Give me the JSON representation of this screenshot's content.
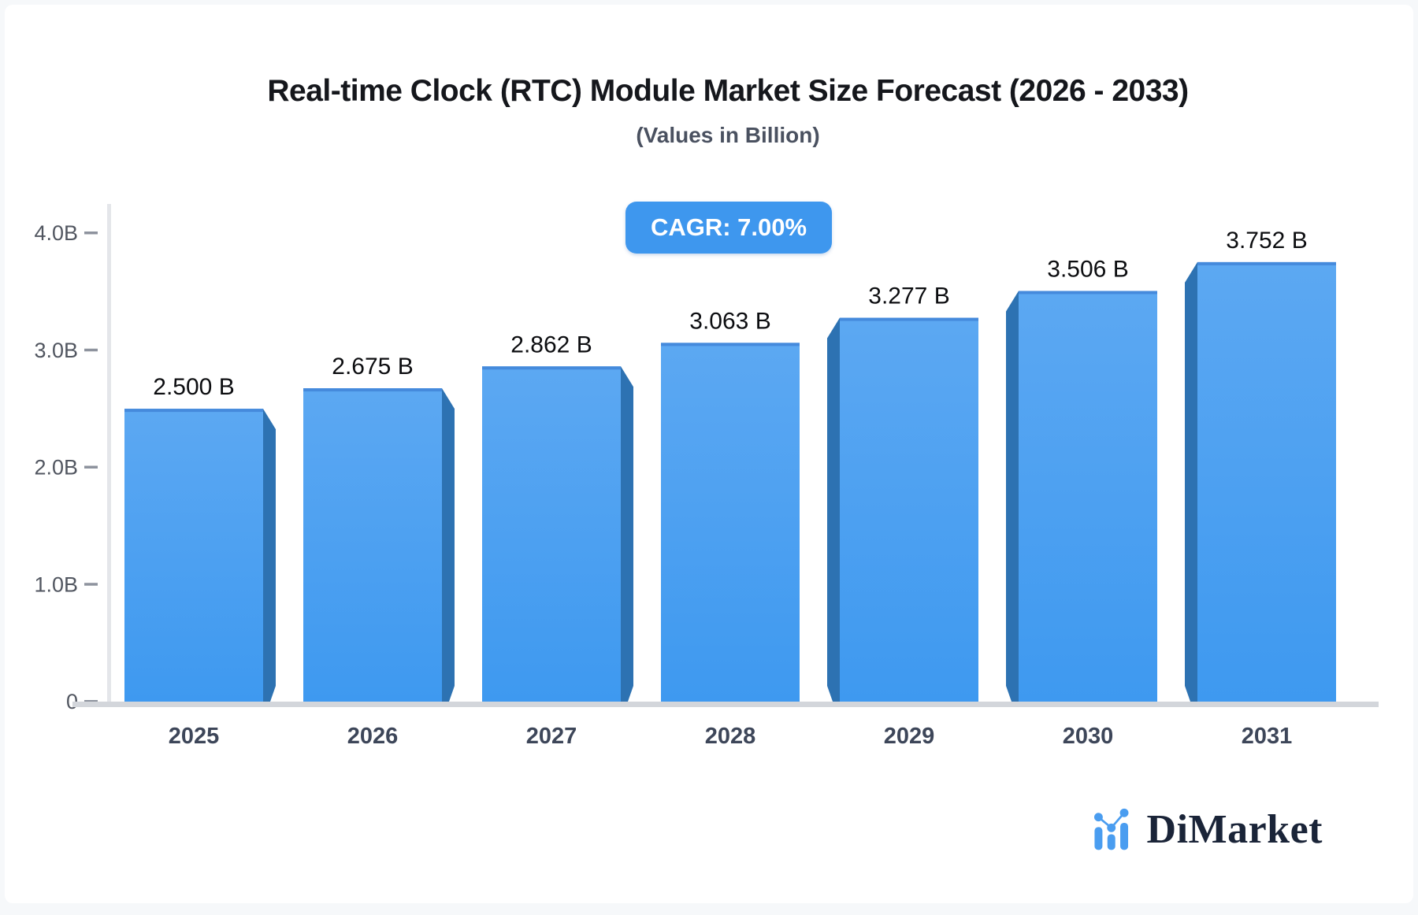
{
  "header": {
    "title": "Real-time Clock (RTC) Module Market Size Forecast (2026 - 2033)",
    "subtitle": "(Values in Billion)"
  },
  "badge": {
    "label": "CAGR: 7.00%",
    "bg_color": "#3E97EE",
    "text_color": "#FFFFFF"
  },
  "chart_data": {
    "type": "bar",
    "title": "Real-time Clock (RTC) Module Market Size Forecast (2026 - 2033)",
    "subtitle": "(Values in Billion)",
    "categories": [
      "2025",
      "2026",
      "2027",
      "2028",
      "2029",
      "2030",
      "2031"
    ],
    "values": [
      2.5,
      2.675,
      2.862,
      3.063,
      3.277,
      3.506,
      3.752
    ],
    "value_labels": [
      "2.500 B",
      "2.675 B",
      "2.862 B",
      "3.063 B",
      "3.277 B",
      "3.506 B",
      "3.752 B"
    ],
    "xlabel": "",
    "ylabel": "",
    "ylim": [
      0,
      4
    ],
    "yticks": [
      {
        "value": 0,
        "label": "0"
      },
      {
        "value": 1,
        "label": "1.0B"
      },
      {
        "value": 2,
        "label": "2.0B"
      },
      {
        "value": 3,
        "label": "3.0B"
      },
      {
        "value": 4,
        "label": "4.0B"
      }
    ],
    "grid": false,
    "legend": "none",
    "colors": {
      "bar_face_top": "#5CA8F2",
      "bar_face_bottom": "#3E99F0",
      "bar_side": "#2D72B2",
      "bar_top_edge": "#4286D9",
      "axis_line": "#E4E6EA",
      "base_line": "#D3D6DB",
      "tick_dash": "#8E939E",
      "y_label": "#515660",
      "x_label": "#3D4659",
      "value_label": "#0C0D10"
    }
  },
  "logo": {
    "text": "DiMarket",
    "icon": "mini-bar-chart-icon",
    "text_color": "#1A2438",
    "accent_color": "#4A9DF0"
  }
}
